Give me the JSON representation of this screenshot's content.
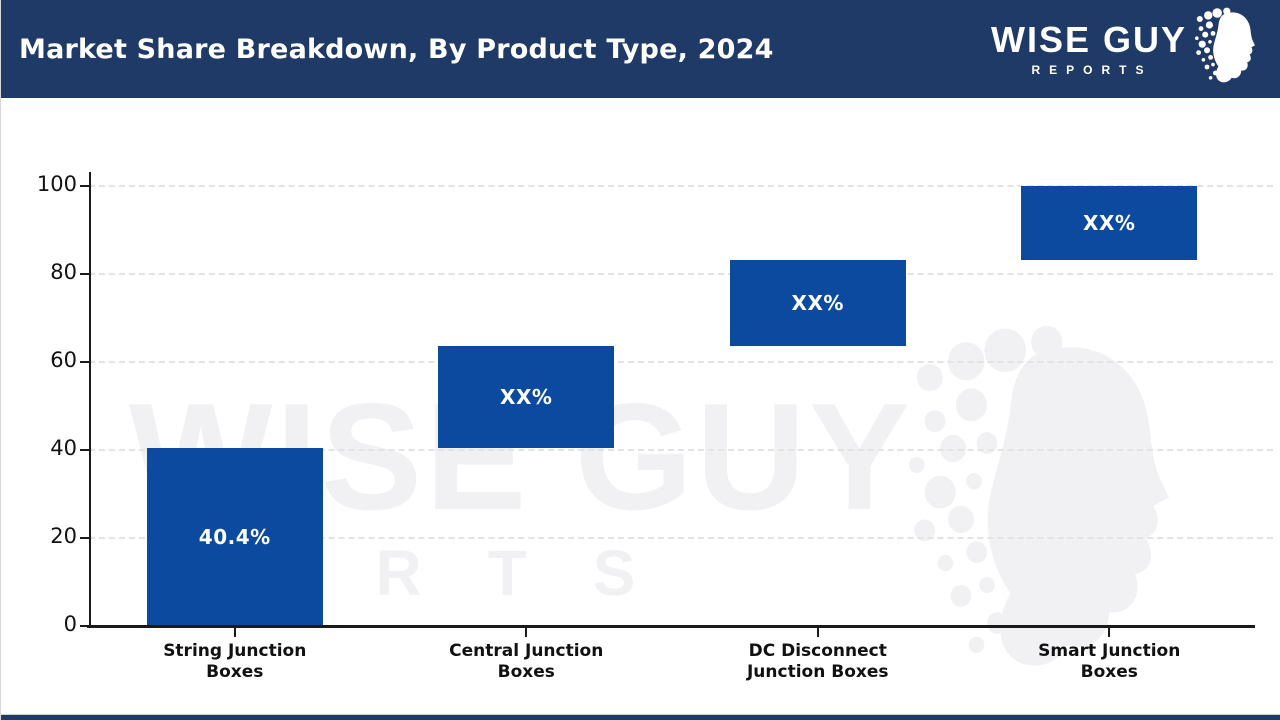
{
  "header": {
    "title": "Market Share Breakdown, By Product Type, 2024",
    "logo": {
      "line1": "WISE GUY",
      "line2": "REPORTS"
    }
  },
  "watermark": {
    "line1": "WISE GUY",
    "line2": "PORTS"
  },
  "colors": {
    "header_bg": "#1f3a66",
    "bar": "#0b4a9f",
    "grid": "#e3e3e3",
    "axis": "#1a1a1a",
    "watermark": "#f1f1f3",
    "bar_label_text": "#ffffff"
  },
  "chart_data": {
    "type": "bar",
    "subtype": "floating-waterfall",
    "title": "Market Share Breakdown, By Product Type, 2024",
    "categories": [
      "String Junction Boxes",
      "Central Junction Boxes",
      "DC Disconnect Junction Boxes",
      "Smart Junction Boxes"
    ],
    "category_lines": [
      [
        "String Junction",
        "Boxes"
      ],
      [
        "Central Junction",
        "Boxes"
      ],
      [
        "DC Disconnect",
        "Junction Boxes"
      ],
      [
        "Smart Junction",
        "Boxes"
      ]
    ],
    "bars": [
      {
        "category": "String Junction Boxes",
        "start": 0,
        "end": 40.4,
        "label": "40.4%"
      },
      {
        "category": "Central Junction Boxes",
        "start": 40.4,
        "end": 63.7,
        "label": "XX%"
      },
      {
        "category": "DC Disconnect Junction Boxes",
        "start": 63.7,
        "end": 83.2,
        "label": "XX%"
      },
      {
        "category": "Smart Junction Boxes",
        "start": 83.2,
        "end": 100,
        "label": "XX%"
      }
    ],
    "xlabel": "",
    "ylabel": "",
    "ylim": [
      0,
      100
    ],
    "yticks": [
      0,
      20,
      40,
      60,
      80,
      100
    ],
    "grid": "horizontal-dashed",
    "legend": "none",
    "bar_color": "#0b4a9f"
  }
}
